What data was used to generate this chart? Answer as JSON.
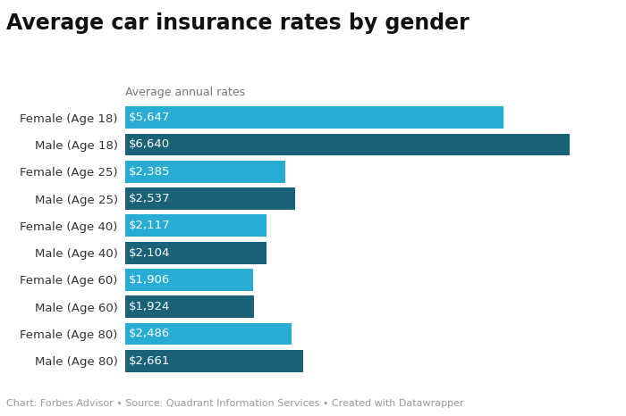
{
  "title": "Average car insurance rates by gender",
  "subtitle": "Average annual rates",
  "footer": "Chart: Forbes Advisor • Source: Quadrant Information Services • Created with Datawrapper",
  "categories": [
    "Female (Age 18)",
    "Male (Age 18)",
    "Female (Age 25)",
    "Male (Age 25)",
    "Female (Age 40)",
    "Male (Age 40)",
    "Female (Age 60)",
    "Male (Age 60)",
    "Female (Age 80)",
    "Male (Age 80)"
  ],
  "values": [
    5647,
    6640,
    2385,
    2537,
    2117,
    2104,
    1906,
    1924,
    2486,
    2661
  ],
  "labels": [
    "$5,647",
    "$6,640",
    "$2,385",
    "$2,537",
    "$2,117",
    "$2,104",
    "$1,906",
    "$1,924",
    "$2,486",
    "$2,661"
  ],
  "colors": [
    "#29acd4",
    "#1a6278",
    "#29acd4",
    "#1a6278",
    "#29acd4",
    "#1a6278",
    "#29acd4",
    "#1a6278",
    "#29acd4",
    "#1a6278"
  ],
  "background_color": "#ffffff",
  "title_fontsize": 17,
  "subtitle_fontsize": 9,
  "label_fontsize": 9.5,
  "footer_fontsize": 8,
  "bar_label_fontsize": 9.5,
  "xlim": [
    0,
    7200
  ],
  "bar_height": 0.82
}
